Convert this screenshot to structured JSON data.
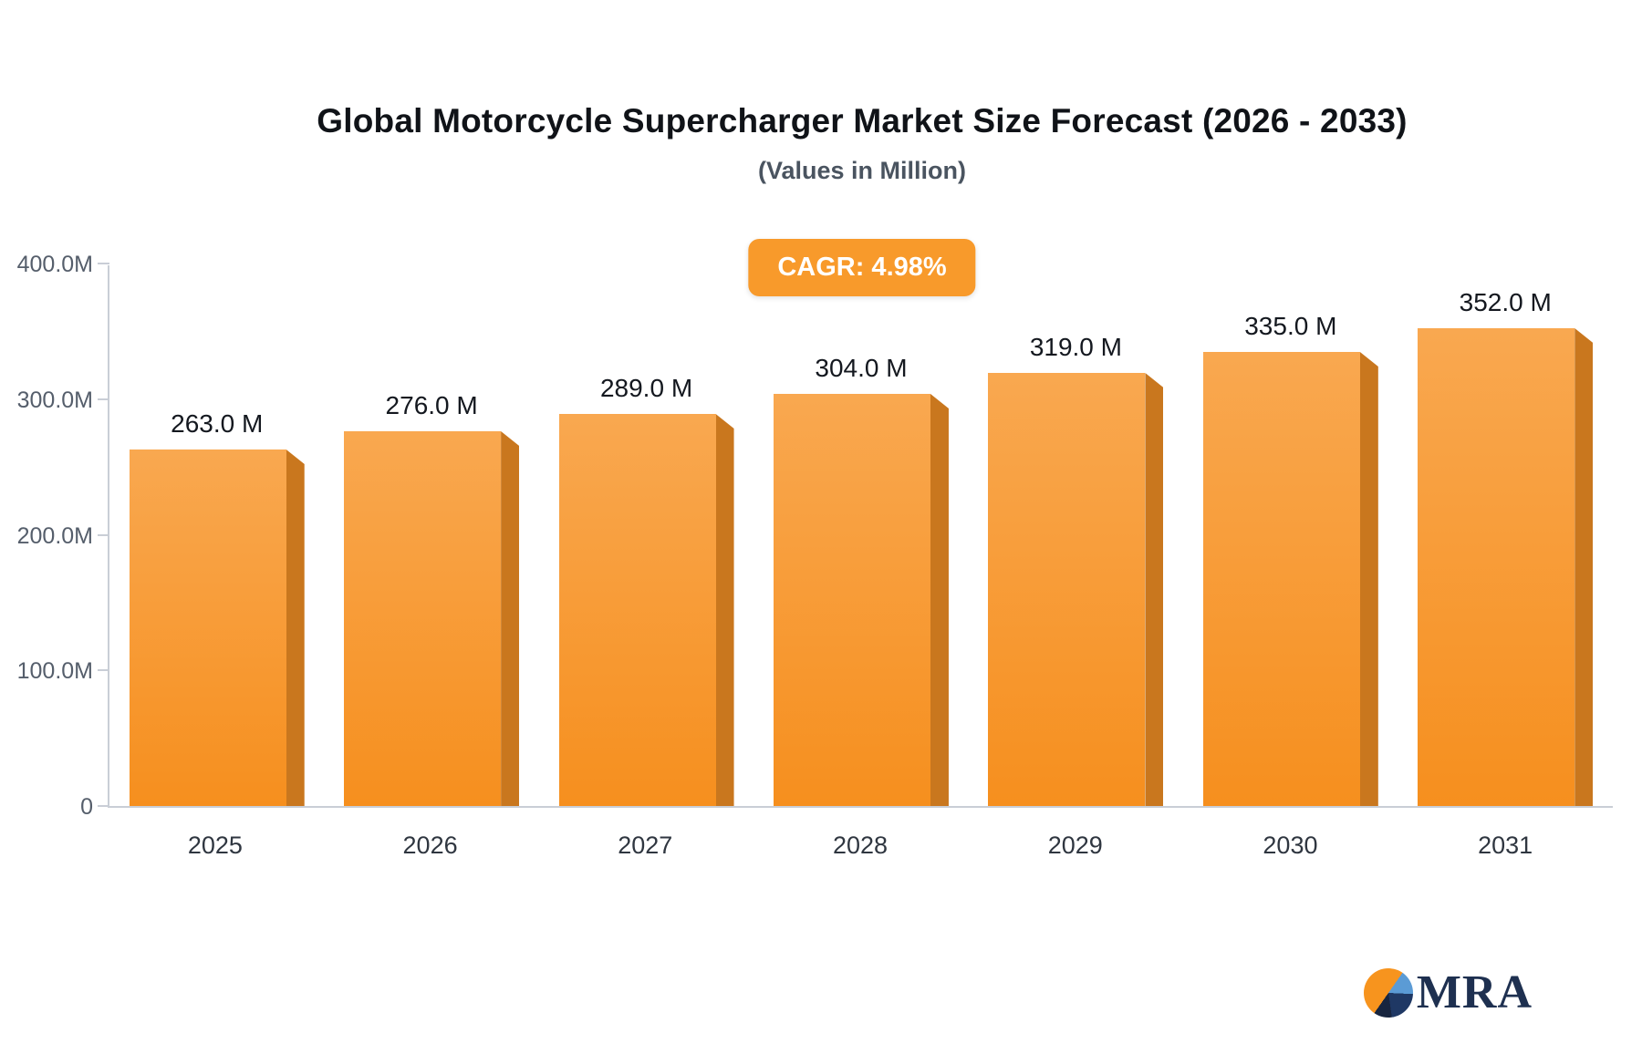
{
  "header": {
    "title": "Global Motorcycle Supercharger Market Size Forecast (2026 - 2033)",
    "subtitle": "(Values in Million)"
  },
  "badge": {
    "label": "CAGR: 4.98%",
    "color": "#f89a2b"
  },
  "chart_data": {
    "type": "bar",
    "title": "Global Motorcycle Supercharger Market Size Forecast (2026 - 2033)",
    "subtitle": "(Values in Million)",
    "categories": [
      "2025",
      "2026",
      "2027",
      "2028",
      "2029",
      "2030",
      "2031"
    ],
    "values": [
      263.0,
      276.0,
      289.0,
      304.0,
      319.0,
      335.0,
      352.0
    ],
    "bar_labels": [
      "263.0 M",
      "276.0 M",
      "289.0 M",
      "304.0 M",
      "319.0 M",
      "335.0 M",
      "352.0 M"
    ],
    "unit": "Million",
    "xlabel": "",
    "ylabel": "",
    "ylim": [
      0,
      400
    ],
    "y_ticks": [
      {
        "label": "400.0M",
        "value": 400
      },
      {
        "label": "300.0M",
        "value": 300
      },
      {
        "label": "200.0M",
        "value": 200
      },
      {
        "label": "100.0M",
        "value": 100
      },
      {
        "label": "0",
        "value": 0
      }
    ],
    "grid": false,
    "legend": "none",
    "colors": {
      "bar_front_top": "#f9a850",
      "bar_front_bottom": "#f68f1e",
      "bar_side": "#c9771e",
      "axis": "#c9ced6"
    }
  },
  "logo": {
    "text": "MRA"
  }
}
